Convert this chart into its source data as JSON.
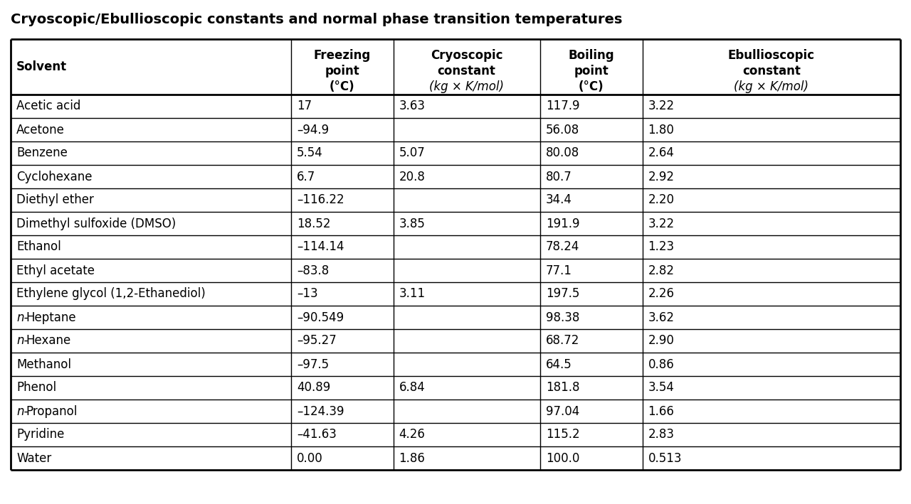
{
  "title": "Cryoscopic/Ebullioscopic constants and normal phase transition temperatures",
  "col_header_line1": [
    "Solvent",
    "Freezing",
    "Cryoscopic",
    "Boiling",
    "Ebullioscopic"
  ],
  "col_header_line2": [
    "",
    "point",
    "constant",
    "point",
    "constant"
  ],
  "col_header_line3": [
    "",
    "(°C)",
    "(kg × K/mol)",
    "(°C)",
    "(kg × K/mol)"
  ],
  "col_header_italic_line3": [
    false,
    false,
    true,
    false,
    true
  ],
  "rows": [
    [
      "Acetic acid",
      "17",
      "3.63",
      "117.9",
      "3.22"
    ],
    [
      "Acetone",
      "–94.9",
      "",
      "56.08",
      "1.80"
    ],
    [
      "Benzene",
      "5.54",
      "5.07",
      "80.08",
      "2.64"
    ],
    [
      "Cyclohexane",
      "6.7",
      "20.8",
      "80.7",
      "2.92"
    ],
    [
      "Diethyl ether",
      "–116.22",
      "",
      "34.4",
      "2.20"
    ],
    [
      "Dimethyl sulfoxide (DMSO)",
      "18.52",
      "3.85",
      "191.9",
      "3.22"
    ],
    [
      "Ethanol",
      "–114.14",
      "",
      "78.24",
      "1.23"
    ],
    [
      "Ethyl acetate",
      "–83.8",
      "",
      "77.1",
      "2.82"
    ],
    [
      "Ethylene glycol (1,2-Ethanediol)",
      "–13",
      "3.11",
      "197.5",
      "2.26"
    ],
    [
      "n-Heptane",
      "–90.549",
      "",
      "98.38",
      "3.62"
    ],
    [
      "n-Hexane",
      "–95.27",
      "",
      "68.72",
      "2.90"
    ],
    [
      "Methanol",
      "–97.5",
      "",
      "64.5",
      "0.86"
    ],
    [
      "Phenol",
      "40.89",
      "6.84",
      "181.8",
      "3.54"
    ],
    [
      "n-Propanol",
      "–124.39",
      "",
      "97.04",
      "1.66"
    ],
    [
      "Pyridine",
      "–41.63",
      "4.26",
      "115.2",
      "2.83"
    ],
    [
      "Water",
      "0.00",
      "1.86",
      "100.0",
      "0.513"
    ]
  ],
  "title_fontsize": 14,
  "header_fontsize": 12,
  "cell_fontsize": 12,
  "background_color": "#ffffff"
}
